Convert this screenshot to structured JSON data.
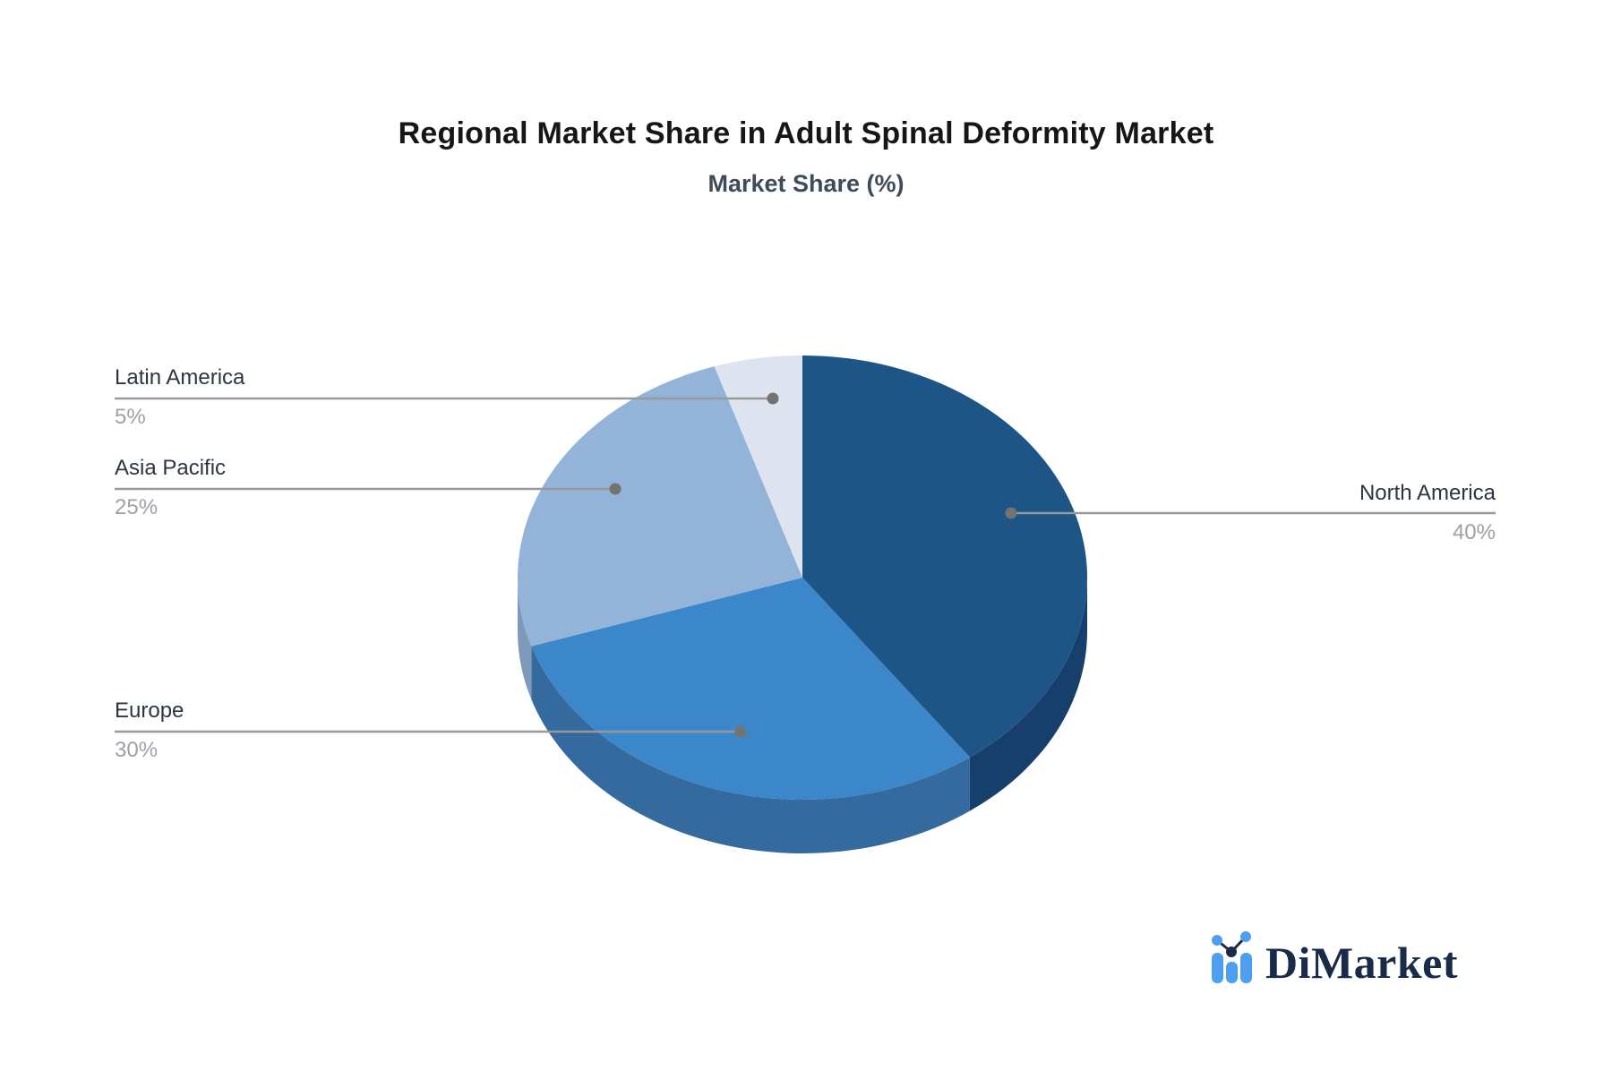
{
  "title": "Regional Market Share in Adult Spinal Deformity Market",
  "subtitle": "Market Share (%)",
  "chart_data": {
    "type": "pie",
    "projection": "3d",
    "title": "Regional Market Share in Adult Spinal Deformity Market",
    "subtitle": "Market Share (%)",
    "unit": "%",
    "direction": "clockwise",
    "start_angle_deg": 0,
    "legend_position": "none",
    "slices": [
      {
        "label": "North America",
        "value": 40,
        "percent_label": "40%",
        "color": "#1d5586",
        "side_color": "#16406b",
        "label_side": "right"
      },
      {
        "label": "Europe",
        "value": 30,
        "percent_label": "30%",
        "color": "#3b87c9",
        "side_color": "#346a9e",
        "label_side": "left"
      },
      {
        "label": "Asia Pacific",
        "value": 25,
        "percent_label": "25%",
        "color": "#93b4d8",
        "side_color": "#7e9ab8",
        "label_side": "left"
      },
      {
        "label": "Latin America",
        "value": 5,
        "percent_label": "5%",
        "color": "#dde4ef",
        "side_color": "#c3ccdb",
        "label_side": "left"
      }
    ]
  },
  "colors": {
    "background": "#ffffff",
    "title_text": "#161616",
    "subtitle_text": "#3e4b59",
    "label_text": "#2e3440",
    "percent_text": "#9ca1a7",
    "leader_line": "#999999",
    "leader_dot": "#737373"
  },
  "branding": {
    "logo_text": "DiMarket",
    "text_color": "#1a2a49",
    "bar_color": "#4f9ff0",
    "icon": "bar-chart-with-trend-line"
  }
}
